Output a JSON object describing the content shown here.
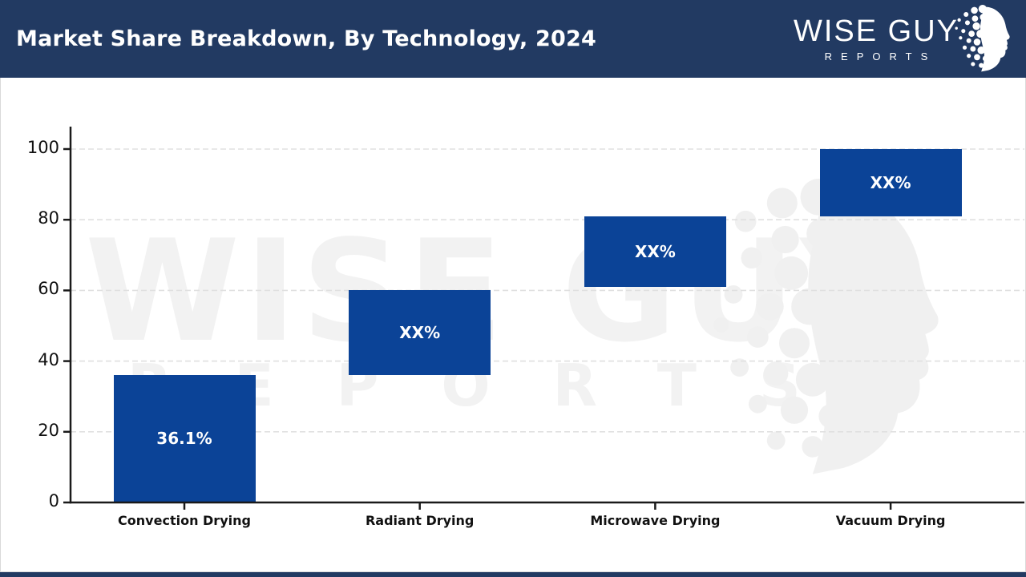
{
  "header": {
    "title": "Market Share Breakdown, By Technology, 2024",
    "logo": {
      "line1": "WISE GUY",
      "line2": "REPORTS"
    }
  },
  "watermark": {
    "line1": "WISE GUY",
    "line2": "REPORTS"
  },
  "chart_data": {
    "type": "bar",
    "subtype": "waterfall",
    "title": "Market Share Breakdown, By Technology, 2024",
    "categories": [
      "Convection Drying",
      "Radiant Drying",
      "Microwave Drying",
      "Vacuum Drying"
    ],
    "segments": [
      {
        "category": "Convection Drying",
        "start": 0,
        "end": 36.1,
        "label": "36.1%"
      },
      {
        "category": "Radiant Drying",
        "start": 36.1,
        "end": 60,
        "label": "XX%"
      },
      {
        "category": "Microwave Drying",
        "start": 61,
        "end": 81,
        "label": "XX%"
      },
      {
        "category": "Vacuum Drying",
        "start": 81,
        "end": 100,
        "label": "XX%"
      }
    ],
    "ylim": [
      0,
      100
    ],
    "yticks": [
      0,
      20,
      40,
      60,
      80,
      100
    ],
    "xlabel": "",
    "ylabel": "",
    "grid": "horizontal-dashed",
    "legend": "none",
    "colors": {
      "bar": "#0b4397",
      "bar_label": "#ffffff",
      "axis": "#1a1a1a",
      "gridline": "#e0e0e0",
      "header_bg": "#223a62",
      "watermark": "#f2f2f2"
    }
  }
}
